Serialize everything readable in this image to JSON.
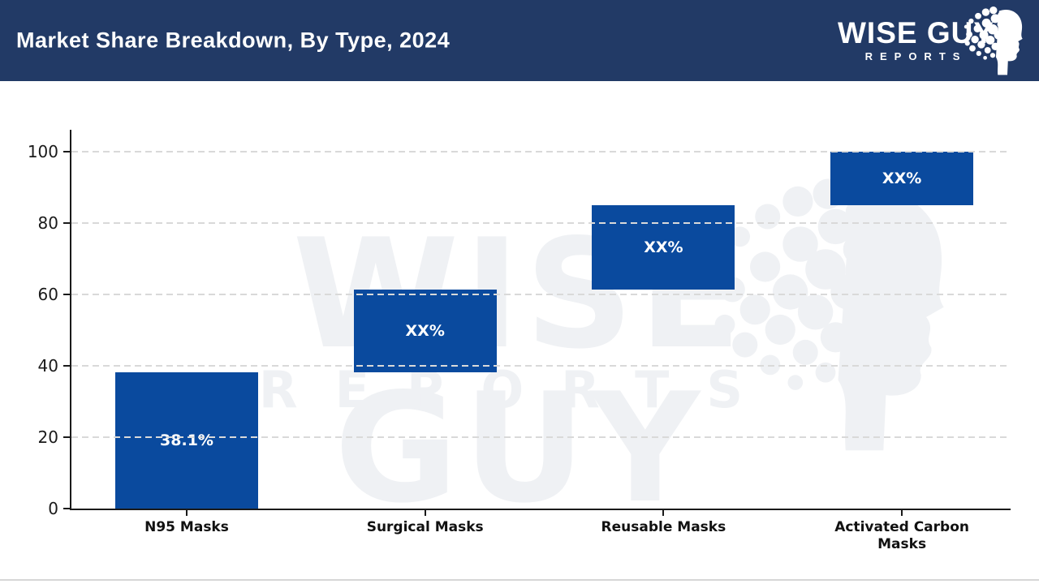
{
  "header": {
    "title": "Market Share Breakdown, By Type, 2024",
    "logo": {
      "line1": "WISE GUY",
      "line2": "REPORTS"
    }
  },
  "watermark": {
    "line1": "WISE GUY",
    "line2": "REPORTS"
  },
  "colors": {
    "header_bg": "#223a66",
    "bar": "#0a4a9e",
    "bar_label": "#ffffff",
    "grid": "#d9d9d9",
    "axis": "#1a1a1a",
    "watermark": "#eff1f4"
  },
  "chart_data": {
    "type": "bar",
    "subtype": "waterfall",
    "title": "Market Share Breakdown, By Type, 2024",
    "categories": [
      "N95 Masks",
      "Surgical Masks",
      "Reusable Masks",
      "Activated Carbon Masks"
    ],
    "segments": [
      {
        "category": "N95 Masks",
        "start": 0,
        "end": 38.1,
        "label": "38.1%"
      },
      {
        "category": "Surgical Masks",
        "start": 38.1,
        "end": 61.3,
        "label": "XX%"
      },
      {
        "category": "Reusable Masks",
        "start": 61.3,
        "end": 84.9,
        "label": "XX%"
      },
      {
        "category": "Activated Carbon Masks",
        "start": 84.9,
        "end": 100,
        "label": "XX%"
      }
    ],
    "xlabel": "",
    "ylabel": "",
    "ylim": [
      0,
      105
    ],
    "yticks": [
      0,
      20,
      40,
      60,
      80,
      100
    ],
    "grid": {
      "axis": "y",
      "style": "dashed",
      "above_bars": true
    },
    "legend": null
  }
}
